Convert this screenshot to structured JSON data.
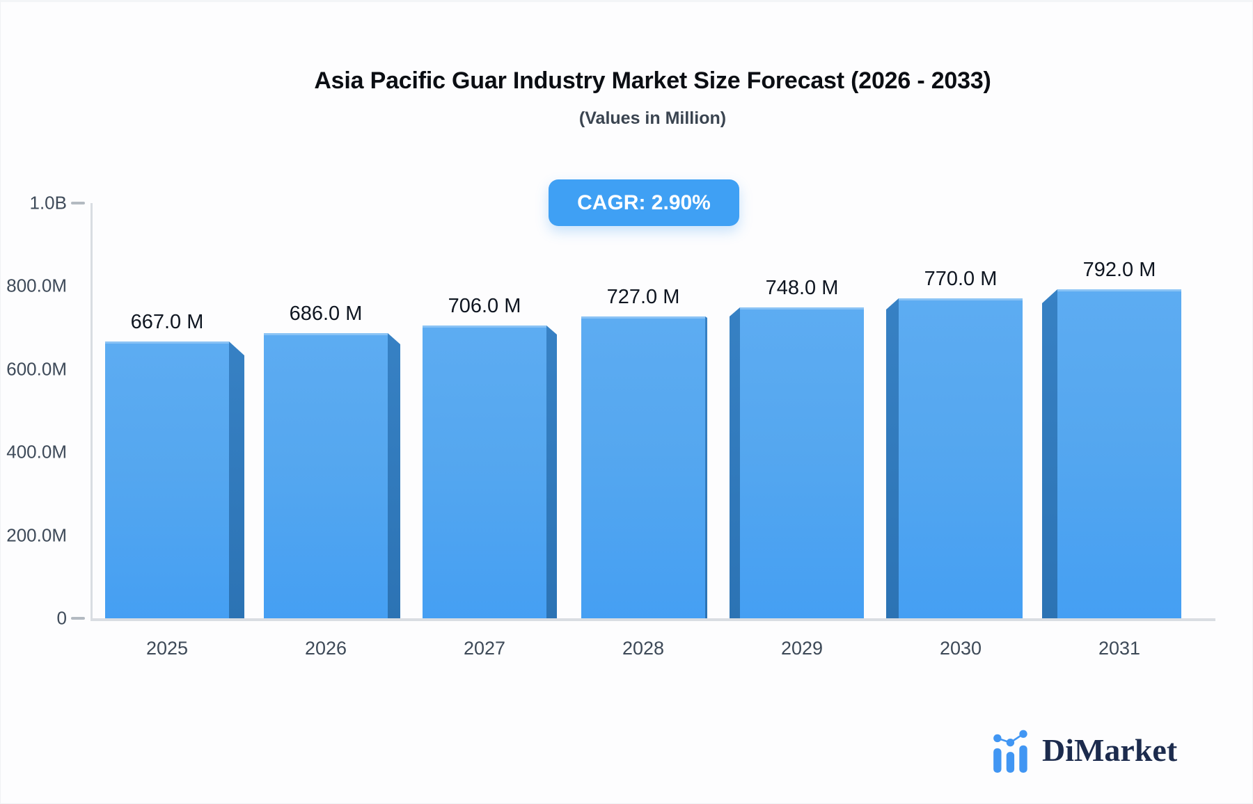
{
  "header": {
    "title": "Asia Pacific Guar Industry Market Size Forecast (2026 - 2033)",
    "subtitle": "(Values in Million)",
    "cagr_badge": "CAGR: 2.90%"
  },
  "chart_data": {
    "type": "bar",
    "style": "3d-bars",
    "title": "Asia Pacific Guar Industry Market Size Forecast (2026 - 2033)",
    "subtitle": "(Values in Million)",
    "cagr": "2.90%",
    "categories": [
      "2025",
      "2026",
      "2027",
      "2028",
      "2029",
      "2030",
      "2031"
    ],
    "values": [
      667.0,
      686.0,
      706.0,
      727.0,
      748.0,
      770.0,
      792.0
    ],
    "value_labels": [
      "667.0 M",
      "686.0 M",
      "706.0 M",
      "727.0 M",
      "748.0 M",
      "770.0 M",
      "792.0 M"
    ],
    "unit": "Million",
    "ylim_millions": [
      0,
      1000
    ],
    "y_ticks": [
      "1.0B",
      "800.0M",
      "600.0M",
      "400.0M",
      "200.0M",
      "0"
    ],
    "xlabel": "",
    "ylabel": "",
    "grid": false,
    "legend": "none",
    "colors": {
      "bar_face": "#55a7ef",
      "bar_side": "#2f7abc",
      "badge_background": "#3fa0f4",
      "badge_text": "#ffffff",
      "axis_line": "#d9dde2",
      "axis_label": "#3e4a59",
      "value_label": "#0e1520",
      "title_text": "#0b0e13"
    }
  },
  "branding": {
    "logo_text": "DiMarket",
    "logo_icon": "bar-chart-trend-icon",
    "logo_icon_color": "#4196f3",
    "logo_text_color": "#1c2b4d"
  }
}
